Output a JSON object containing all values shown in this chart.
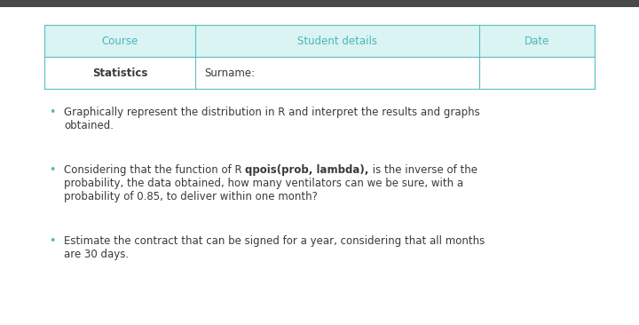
{
  "background_color": "#ffffff",
  "table_header_bg": "#daf3f3",
  "table_border_color": "#5bbfbf",
  "table_col1_label": "Course",
  "table_col2_label": "Student details",
  "table_col3_label": "Date",
  "table_row1_col1": "Statistics",
  "table_row1_col2": "Surname:",
  "table_row1_col3": "",
  "header_text_color": "#4ab8b8",
  "body_text_color": "#3a3a3a",
  "bullet_color": "#4ab8b8",
  "bullet1_line1": "Graphically represent the distribution in R and interpret the results and graphs",
  "bullet1_line2": "obtained.",
  "bullet2_pre": "Considering that the function of R ",
  "bullet2_bold": "qpois(prob, lambda),",
  "bullet2_post": " is the inverse of the",
  "bullet2_line2": "probability, the data obtained, how many ventilators can we be sure, with a",
  "bullet2_line3": "probability of 0.85, to deliver within one month?",
  "bullet3_line1": "Estimate the contract that can be signed for a year, considering that all months",
  "bullet3_line2": "are 30 days.",
  "font_size_header": 8.5,
  "font_size_body": 8.5,
  "top_bar_color": "#4a4a4a"
}
